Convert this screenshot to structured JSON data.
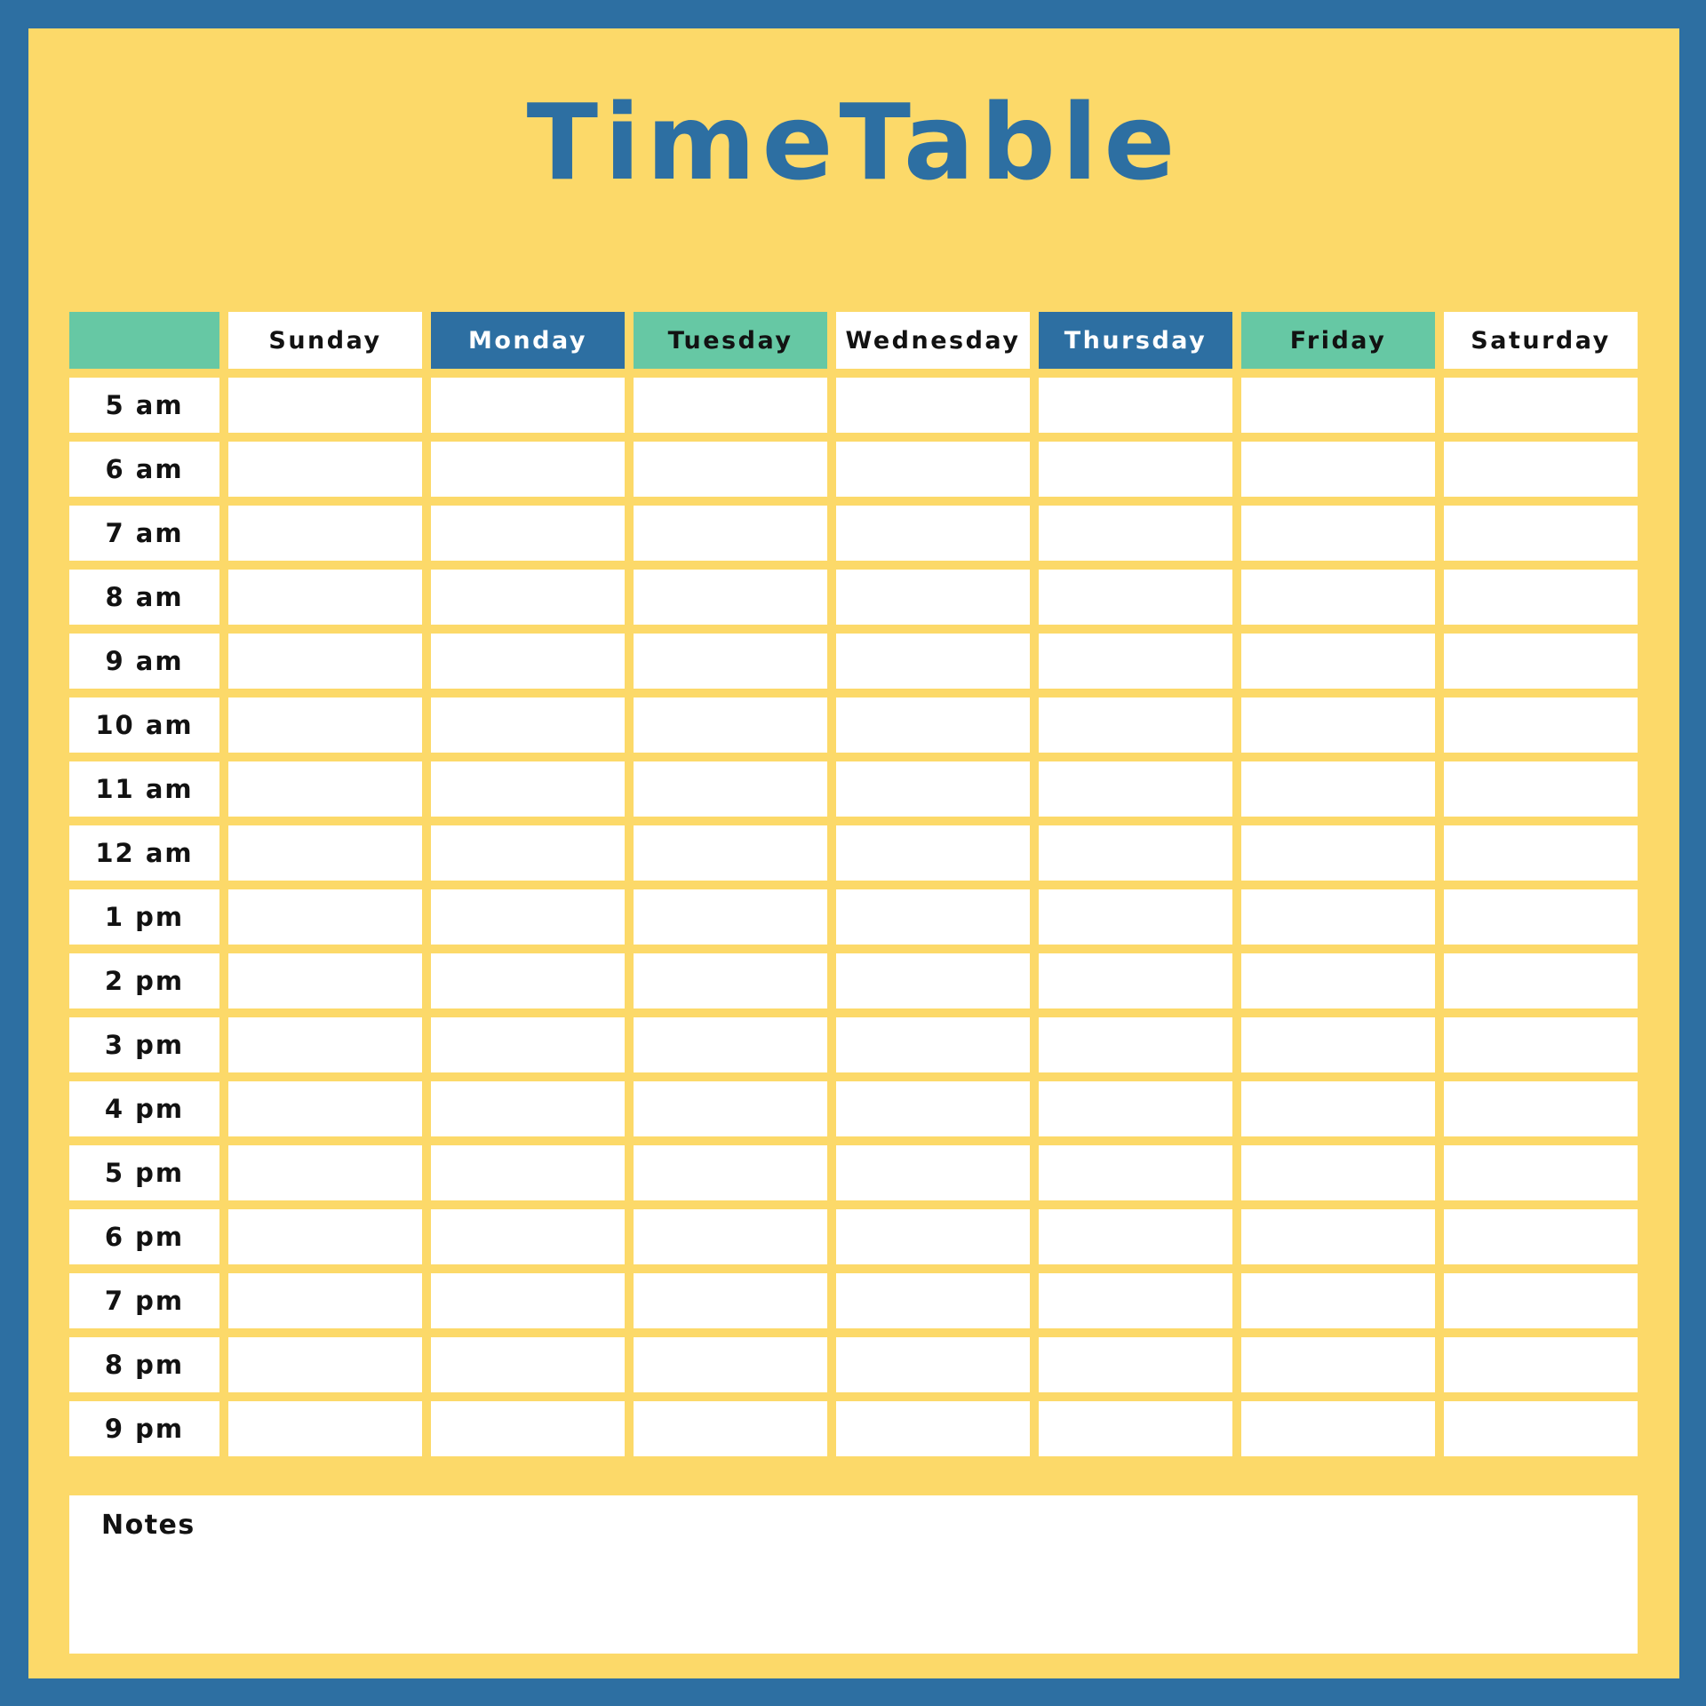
{
  "title": "TimeTable",
  "table": {
    "days": [
      {
        "label": "Sunday",
        "style": "white"
      },
      {
        "label": "Monday",
        "style": "blue"
      },
      {
        "label": "Tuesday",
        "style": "teal"
      },
      {
        "label": "Wednesday",
        "style": "white"
      },
      {
        "label": "Thursday",
        "style": "blue"
      },
      {
        "label": "Friday",
        "style": "teal"
      },
      {
        "label": "Saturday",
        "style": "white"
      }
    ],
    "times": [
      "5 am",
      "6 am",
      "7 am",
      "8 am",
      "9 am",
      "10 am",
      "11 am",
      "12 am",
      "1 pm",
      "2 pm",
      "3 pm",
      "4 pm",
      "5 pm",
      "6 pm",
      "7 pm",
      "8 pm",
      "9 pm"
    ],
    "cell_values": []
  },
  "notes": {
    "label": "Notes",
    "content": ""
  },
  "colors": {
    "border_blue": "#2d6fa2",
    "background_yellow": "#fcd969",
    "accent_teal": "#66c8a4",
    "cell_white": "#ffffff",
    "text_dark": "#121212",
    "text_light": "#ffffff",
    "title_blue": "#2d6fa2"
  }
}
